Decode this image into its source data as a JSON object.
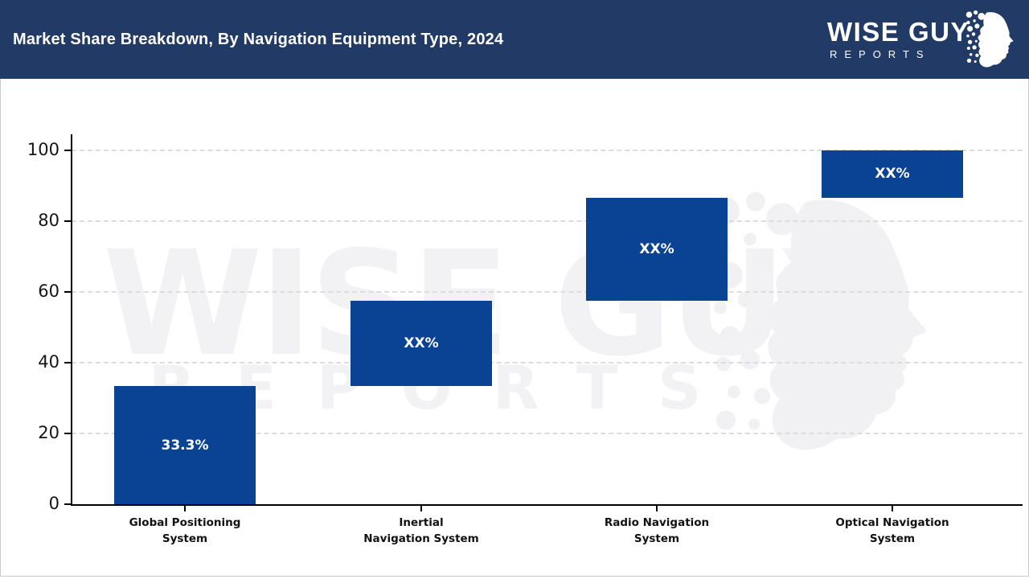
{
  "header": {
    "title": "Market Share Breakdown, By Navigation Equipment Type, 2024",
    "logo": {
      "line1": "WISE GUY",
      "line2": "REPORTS"
    }
  },
  "watermark": {
    "line1": "WISE GUY",
    "line2": "REPORTS"
  },
  "colors": {
    "header_navy": "#223a66",
    "bar_blue": "#0a4294",
    "bar_label_white": "#ffffff",
    "gridline_gray": "#dcdcdc",
    "watermark_gray": "#f2f2f4"
  },
  "chart_data": {
    "type": "bar",
    "subtype": "waterfall",
    "title": "Market Share Breakdown, By Navigation Equipment Type, 2024",
    "categories": [
      [
        "Global Positioning",
        "System"
      ],
      [
        "Inertial",
        "Navigation System"
      ],
      [
        "Radio Navigation",
        "System"
      ],
      [
        "Optical Navigation",
        "System"
      ]
    ],
    "segments": [
      {
        "category": "Global Positioning System",
        "start": 0,
        "end": 33.3,
        "value": 33.3,
        "label": "33.3%"
      },
      {
        "category": "Inertial Navigation System",
        "start": 33.3,
        "end": 57.5,
        "value": 24.2,
        "label": "XX%"
      },
      {
        "category": "Radio Navigation System",
        "start": 57.5,
        "end": 86.6,
        "value": 29.1,
        "label": "XX%"
      },
      {
        "category": "Optical Navigation System",
        "start": 86.6,
        "end": 100,
        "value": 13.4,
        "label": "XX%"
      }
    ],
    "xlabel": "",
    "ylabel": "",
    "ylim": [
      0,
      100
    ],
    "yticks": [
      0,
      20,
      40,
      60,
      80,
      100
    ],
    "grid": "horizontal-dashed",
    "legend": "none"
  }
}
